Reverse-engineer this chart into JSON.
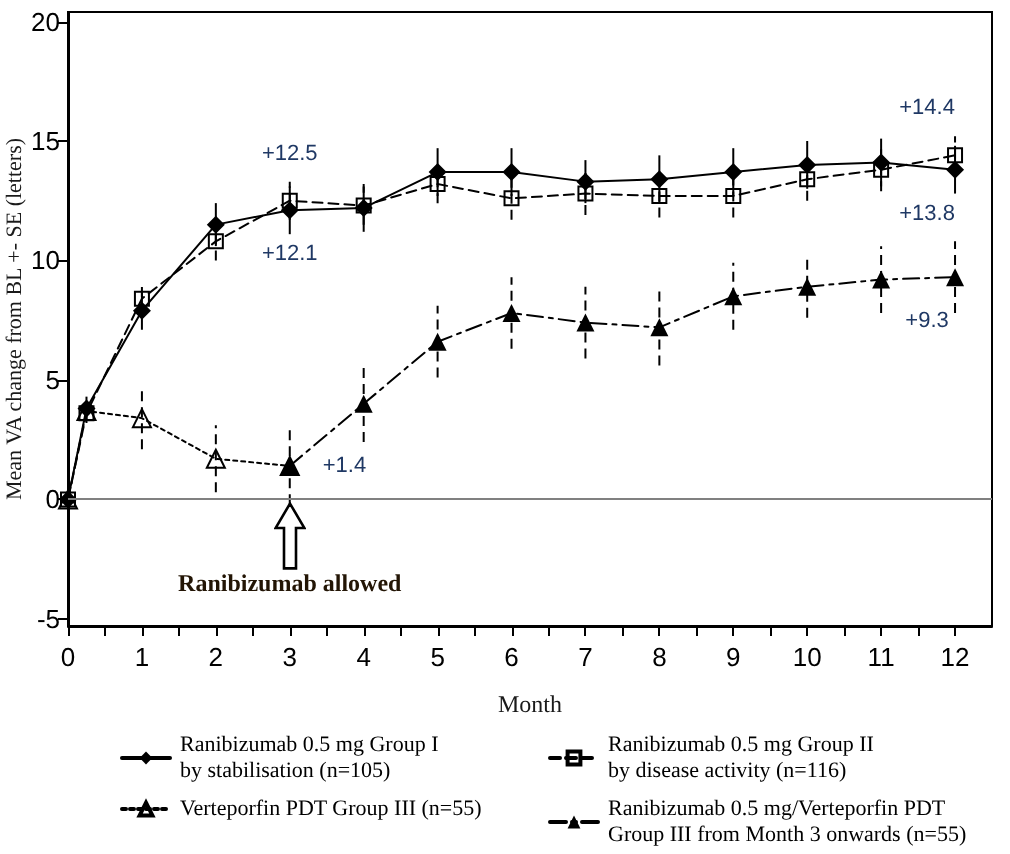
{
  "chart_data": {
    "type": "line",
    "xlabel": "Month",
    "ylabel": "Mean VA change from BL +- SE (letters)",
    "xlim": [
      0,
      12.5
    ],
    "xticks": [
      0,
      {
        "value": 0.5,
        "label": null
      },
      1,
      {
        "value": 1.5,
        "label": null
      },
      2,
      {
        "value": 2.5,
        "label": null
      },
      3,
      {
        "value": 3.5,
        "label": null
      },
      4,
      {
        "value": 4.5,
        "label": null
      },
      5,
      {
        "value": 5.5,
        "label": null
      },
      6,
      {
        "value": 6.5,
        "label": null
      },
      7,
      {
        "value": 7.5,
        "label": null
      },
      8,
      {
        "value": 8.5,
        "label": null
      },
      9,
      {
        "value": 9.5,
        "label": null
      },
      10,
      {
        "value": 10.5,
        "label": null
      },
      11,
      {
        "value": 11.5,
        "label": null
      },
      12
    ],
    "ylim": [
      -5.3,
      20.4
    ],
    "yticks": [
      -5,
      0,
      5,
      10,
      15,
      20
    ],
    "legend": "bottom",
    "series": [
      {
        "name": "Ranibizumab 0.5 mg Group I\nby stabilisation (n=105)",
        "color": "#000000",
        "marker": "diamond",
        "line_style": "solid",
        "x": [
          0,
          0.25,
          1,
          2,
          3,
          4,
          5,
          6,
          7,
          8,
          9,
          10,
          11,
          12
        ],
        "values": [
          0,
          3.8,
          7.9,
          11.5,
          12.1,
          12.2,
          13.7,
          13.7,
          13.3,
          13.4,
          13.7,
          14.0,
          14.1,
          13.8
        ],
        "errors": [
          null,
          0.5,
          0.8,
          0.9,
          1.0,
          1.0,
          1.0,
          1.0,
          0.9,
          1.0,
          1.0,
          1.0,
          1.0,
          1.0
        ],
        "value_labels": [
          null,
          null,
          null,
          null,
          "+12.1",
          null,
          null,
          null,
          null,
          null,
          null,
          null,
          null,
          "+13.8"
        ]
      },
      {
        "name": "Ranibizumab 0.5 mg Group II\nby disease activity (n=116)",
        "color": "#000000",
        "marker": "square",
        "line_style": "dashed",
        "x": [
          0,
          0.25,
          1,
          2,
          3,
          4,
          5,
          6,
          7,
          8,
          9,
          10,
          11,
          12
        ],
        "values": [
          0,
          3.6,
          8.4,
          10.8,
          12.5,
          12.3,
          13.2,
          12.6,
          12.8,
          12.7,
          12.7,
          13.4,
          13.8,
          14.4
        ],
        "errors": [
          null,
          0.4,
          0.6,
          0.8,
          0.8,
          0.8,
          0.8,
          0.9,
          0.9,
          0.9,
          0.9,
          0.9,
          0.9,
          0.8
        ],
        "value_labels": [
          null,
          null,
          null,
          null,
          "+12.5",
          null,
          null,
          null,
          null,
          null,
          null,
          null,
          null,
          "+14.4"
        ]
      },
      {
        "name": "Verteporfin PDT Group III (n=55)",
        "color": "#000000",
        "marker": "triangle",
        "line_style": "dotted",
        "x": [
          0,
          0.25,
          1,
          2,
          3
        ],
        "values": [
          0,
          3.7,
          3.4,
          1.7,
          1.4
        ],
        "errors": [
          null,
          null,
          1.3,
          1.4,
          null
        ]
      },
      {
        "name": "Ranibizumab 0.5 mg/Verteporfin PDT\nGroup III from Month 3 onwards (n=55)",
        "color": "#000000",
        "marker": "triangle",
        "line_style": "dashdot",
        "x": [
          3,
          4,
          5,
          6,
          7,
          8,
          9,
          10,
          11,
          12
        ],
        "values": [
          1.4,
          4.0,
          6.6,
          7.8,
          7.4,
          7.2,
          8.5,
          8.9,
          9.2,
          9.3
        ],
        "errors": [
          1.6,
          1.6,
          1.5,
          1.5,
          1.5,
          1.6,
          1.4,
          1.3,
          1.4,
          1.5
        ],
        "value_labels": [
          "+1.4",
          null,
          null,
          null,
          null,
          null,
          null,
          null,
          null,
          "+9.3"
        ]
      }
    ],
    "ref_lines": [
      {
        "axis": "y",
        "value": 0,
        "color": "#808080"
      }
    ],
    "annotations": [
      {
        "text": "Ranibizumab allowed",
        "x": 3,
        "y": 0
      }
    ]
  }
}
